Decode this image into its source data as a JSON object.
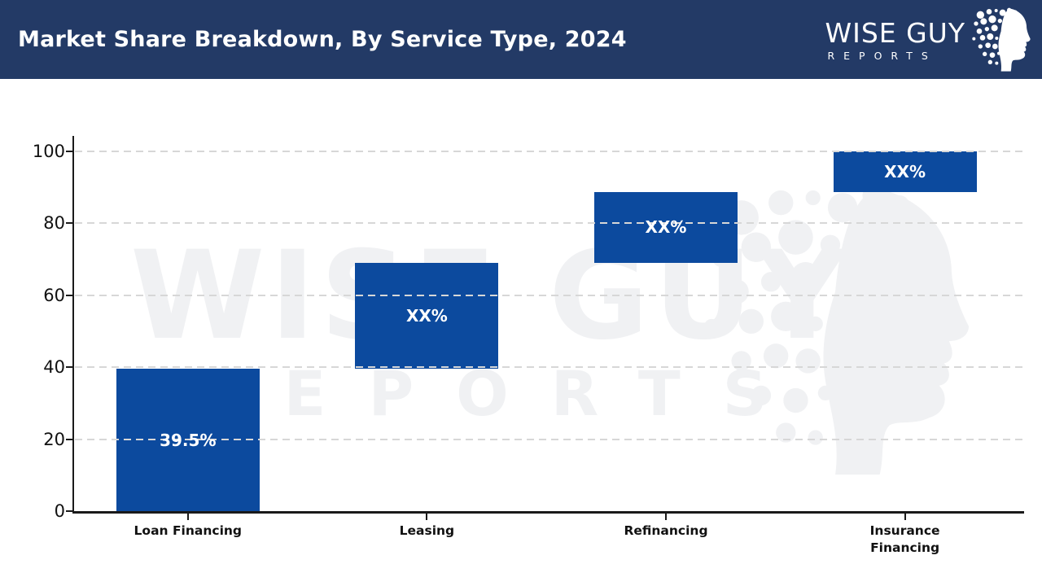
{
  "header": {
    "title": "Market Share Breakdown, By Service Type, 2024",
    "logo": {
      "line1": "WISE GUY",
      "line2": "REPORTS"
    }
  },
  "watermark": {
    "line1": "WISE GUY",
    "line2": "REPORTS"
  },
  "chart_data": {
    "type": "bar",
    "subtype": "waterfall",
    "title": "Market Share Breakdown, By Service Type, 2024",
    "xlabel": "",
    "ylabel": "",
    "ylim": [
      0,
      100
    ],
    "yticks": [
      0,
      20,
      40,
      60,
      80,
      100
    ],
    "grid": "horizontal-dashed",
    "legend_visible": false,
    "bar_color": "#0c4a9e",
    "bar_label_color": "#ffffff",
    "categories": [
      "Loan Financing",
      "Leasing",
      "Refinancing",
      "Insurance\nFinancing"
    ],
    "segments": [
      {
        "category": "Loan Financing",
        "start": 0,
        "end": 39.5,
        "label": "39.5%"
      },
      {
        "category": "Leasing",
        "start": 39.5,
        "end": 69,
        "label": "XX%"
      },
      {
        "category": "Refinancing",
        "start": 69,
        "end": 88.7,
        "label": "XX%"
      },
      {
        "category": "Insurance Financing",
        "start": 88.7,
        "end": 100,
        "label": "XX%"
      }
    ]
  }
}
